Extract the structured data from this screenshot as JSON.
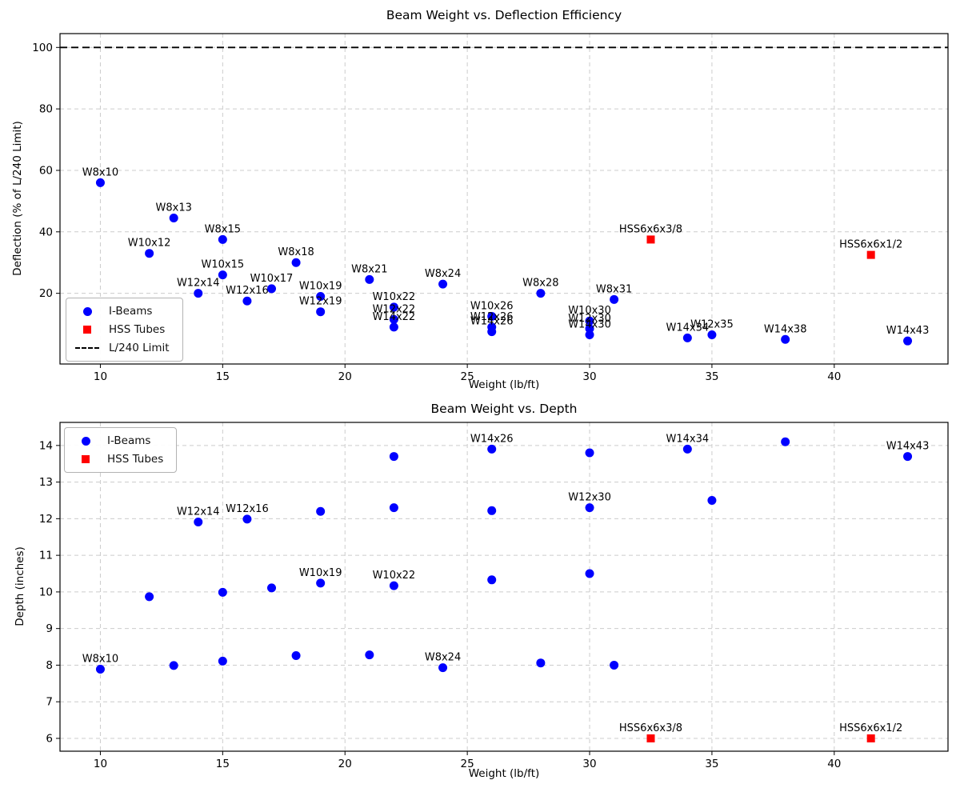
{
  "colors": {
    "ibeam_blue": "#0000ff",
    "hss_red": "#ff0000",
    "limit_black": "#000000",
    "grid_gray": "#cccccc"
  },
  "chart_data": [
    {
      "type": "scatter",
      "title": "Beam Weight vs. Deflection Efficiency",
      "xlabel": "Weight (lb/ft)",
      "ylabel": "Deflection (% of L/240 Limit)",
      "xlim": [
        8.35,
        44.65
      ],
      "ylim": [
        -3,
        104.5
      ],
      "xticks": [
        10,
        15,
        20,
        25,
        30,
        35,
        40
      ],
      "yticks": [
        20,
        40,
        60,
        80,
        100
      ],
      "grid": true,
      "legend": {
        "position": "lower-left",
        "items": [
          "I-Beams",
          "HSS Tubes",
          "L/240 Limit"
        ]
      },
      "hline": {
        "y": 100,
        "label": "L/240 Limit",
        "color": "#000000",
        "style": "dashed"
      },
      "series": [
        {
          "name": "I-Beams",
          "marker": "circle",
          "color": "#0000ff",
          "points": [
            {
              "label": "W8x10",
              "x": 10,
              "y": 56,
              "show_label": true
            },
            {
              "label": "W10x12",
              "x": 12,
              "y": 33,
              "show_label": true
            },
            {
              "label": "W8x13",
              "x": 13,
              "y": 44.5,
              "show_label": true
            },
            {
              "label": "W12x14",
              "x": 14,
              "y": 20,
              "show_label": true
            },
            {
              "label": "W8x15",
              "x": 15,
              "y": 37.5,
              "show_label": true
            },
            {
              "label": "W10x15",
              "x": 15,
              "y": 26,
              "show_label": true
            },
            {
              "label": "W12x16",
              "x": 16,
              "y": 17.5,
              "show_label": true
            },
            {
              "label": "W10x17",
              "x": 17,
              "y": 21.5,
              "show_label": true
            },
            {
              "label": "W8x18",
              "x": 18,
              "y": 30,
              "show_label": true
            },
            {
              "label": "W10x19",
              "x": 19,
              "y": 19,
              "show_label": true
            },
            {
              "label": "W12x19",
              "x": 19,
              "y": 14,
              "show_label": true
            },
            {
              "label": "W8x21",
              "x": 21,
              "y": 24.5,
              "show_label": true
            },
            {
              "label": "W10x22",
              "x": 22,
              "y": 15.5,
              "show_label": true
            },
            {
              "label": "W12x22",
              "x": 22,
              "y": 11.5,
              "show_label": true
            },
            {
              "label": "W14x22",
              "x": 22,
              "y": 9,
              "show_label": true
            },
            {
              "label": "W8x24",
              "x": 24,
              "y": 23,
              "show_label": true
            },
            {
              "label": "W10x26",
              "x": 26,
              "y": 12.5,
              "show_label": true
            },
            {
              "label": "W12x26",
              "x": 26,
              "y": 9,
              "show_label": true
            },
            {
              "label": "W14x26",
              "x": 26,
              "y": 7.5,
              "show_label": true
            },
            {
              "label": "W8x28",
              "x": 28,
              "y": 20,
              "show_label": true
            },
            {
              "label": "W10x30",
              "x": 30,
              "y": 11,
              "show_label": true
            },
            {
              "label": "W12x30",
              "x": 30,
              "y": 8.5,
              "show_label": true
            },
            {
              "label": "W14x30",
              "x": 30,
              "y": 6.5,
              "show_label": true
            },
            {
              "label": "W8x31",
              "x": 31,
              "y": 18,
              "show_label": true
            },
            {
              "label": "W14x34",
              "x": 34,
              "y": 5.5,
              "show_label": true
            },
            {
              "label": "W12x35",
              "x": 35,
              "y": 6.5,
              "show_label": true
            },
            {
              "label": "W14x38",
              "x": 38,
              "y": 5,
              "show_label": true
            },
            {
              "label": "W14x43",
              "x": 43,
              "y": 4.5,
              "show_label": true
            }
          ]
        },
        {
          "name": "HSS Tubes",
          "marker": "square",
          "color": "#ff0000",
          "points": [
            {
              "label": "HSS6x6x3/8",
              "x": 32.5,
              "y": 37.5,
              "show_label": true
            },
            {
              "label": "HSS6x6x1/2",
              "x": 41.5,
              "y": 32.5,
              "show_label": true
            }
          ]
        }
      ]
    },
    {
      "type": "scatter",
      "title": "Beam Weight vs. Depth",
      "xlabel": "Weight (lb/ft)",
      "ylabel": "Depth (inches)",
      "xlim": [
        8.35,
        44.65
      ],
      "ylim": [
        5.65,
        14.63
      ],
      "xticks": [
        10,
        15,
        20,
        25,
        30,
        35,
        40
      ],
      "yticks": [
        6,
        7,
        8,
        9,
        10,
        11,
        12,
        13,
        14
      ],
      "grid": true,
      "legend": {
        "position": "upper-left",
        "items": [
          "I-Beams",
          "HSS Tubes"
        ]
      },
      "series": [
        {
          "name": "I-Beams",
          "marker": "circle",
          "color": "#0000ff",
          "points": [
            {
              "label": "W8x10",
              "x": 10,
              "y": 7.89,
              "show_label": true
            },
            {
              "label": "W10x12",
              "x": 12,
              "y": 9.87,
              "show_label": false
            },
            {
              "label": "W8x13",
              "x": 13,
              "y": 7.99,
              "show_label": false
            },
            {
              "label": "W12x14",
              "x": 14,
              "y": 11.91,
              "show_label": true
            },
            {
              "label": "W8x15",
              "x": 15,
              "y": 8.11,
              "show_label": false
            },
            {
              "label": "W10x15",
              "x": 15,
              "y": 9.99,
              "show_label": false
            },
            {
              "label": "W12x16",
              "x": 16,
              "y": 11.99,
              "show_label": true
            },
            {
              "label": "W10x17",
              "x": 17,
              "y": 10.11,
              "show_label": false
            },
            {
              "label": "W8x18",
              "x": 18,
              "y": 8.26,
              "show_label": false
            },
            {
              "label": "W10x19",
              "x": 19,
              "y": 10.24,
              "show_label": true
            },
            {
              "label": "W12x19",
              "x": 19,
              "y": 12.2,
              "show_label": false
            },
            {
              "label": "W8x21",
              "x": 21,
              "y": 8.28,
              "show_label": false
            },
            {
              "label": "W10x22",
              "x": 22,
              "y": 10.17,
              "show_label": true
            },
            {
              "label": "W12x22",
              "x": 22,
              "y": 12.3,
              "show_label": false
            },
            {
              "label": "W14x22",
              "x": 22,
              "y": 13.7,
              "show_label": false
            },
            {
              "label": "W8x24",
              "x": 24,
              "y": 7.93,
              "show_label": true
            },
            {
              "label": "W10x26",
              "x": 26,
              "y": 10.33,
              "show_label": false
            },
            {
              "label": "W12x26",
              "x": 26,
              "y": 12.22,
              "show_label": false
            },
            {
              "label": "W14x26",
              "x": 26,
              "y": 13.9,
              "show_label": true
            },
            {
              "label": "W8x28",
              "x": 28,
              "y": 8.06,
              "show_label": false
            },
            {
              "label": "W10x30",
              "x": 30,
              "y": 10.5,
              "show_label": false
            },
            {
              "label": "W12x30",
              "x": 30,
              "y": 12.3,
              "show_label": true
            },
            {
              "label": "W14x30",
              "x": 30,
              "y": 13.8,
              "show_label": false
            },
            {
              "label": "W8x31",
              "x": 31,
              "y": 8.0,
              "show_label": false
            },
            {
              "label": "W14x34",
              "x": 34,
              "y": 13.9,
              "show_label": true
            },
            {
              "label": "W12x35",
              "x": 35,
              "y": 12.5,
              "show_label": false
            },
            {
              "label": "W14x38",
              "x": 38,
              "y": 14.1,
              "show_label": false
            },
            {
              "label": "W14x43",
              "x": 43,
              "y": 13.7,
              "show_label": true
            }
          ]
        },
        {
          "name": "HSS Tubes",
          "marker": "square",
          "color": "#ff0000",
          "points": [
            {
              "label": "HSS6x6x3/8",
              "x": 32.5,
              "y": 6.0,
              "show_label": true
            },
            {
              "label": "HSS6x6x1/2",
              "x": 41.5,
              "y": 6.0,
              "show_label": true
            }
          ]
        }
      ]
    }
  ]
}
